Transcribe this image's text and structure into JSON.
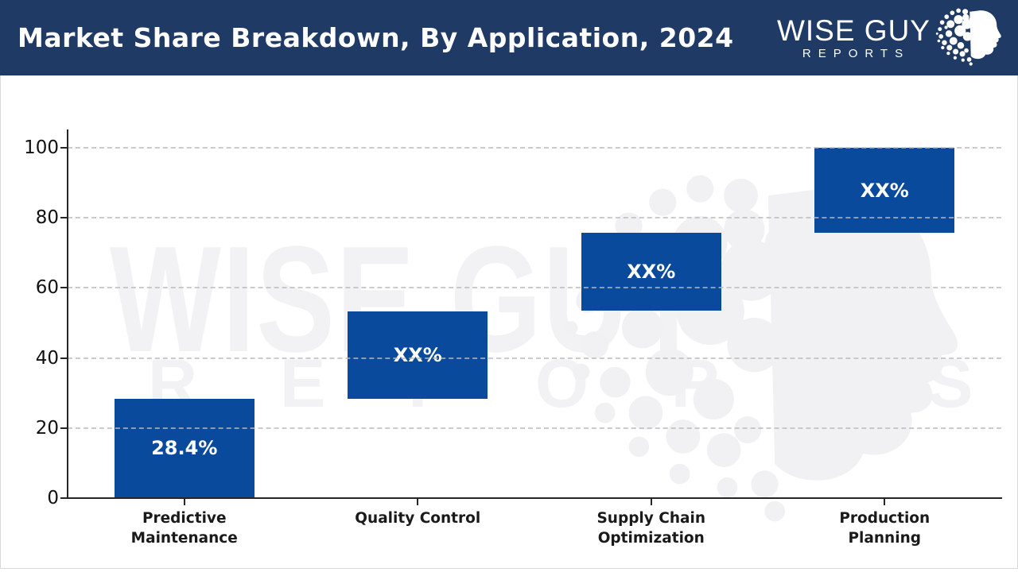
{
  "header": {
    "title": "Market Share Breakdown, By Application, 2024",
    "bg_color": "#203a66",
    "logo": {
      "primary": "WISE GUY",
      "secondary": "REPORTS"
    }
  },
  "watermark": {
    "primary": "WISE GUY",
    "secondary": "R E P O R T S"
  },
  "chart_data": {
    "type": "bar",
    "subtype": "waterfall",
    "title": "Market Share Breakdown, By Application, 2024",
    "categories": [
      "Predictive Maintenance",
      "Quality Control",
      "Supply Chain Optimization",
      "Production Planning"
    ],
    "segments": [
      {
        "category": "Predictive Maintenance",
        "start": 0,
        "end": 28.4,
        "value_label": "28.4%"
      },
      {
        "category": "Quality Control",
        "start": 28.4,
        "end": 53.4,
        "value_label": "XX%"
      },
      {
        "category": "Supply Chain Optimization",
        "start": 53.4,
        "end": 75.7,
        "value_label": "XX%"
      },
      {
        "category": "Production Planning",
        "start": 75.7,
        "end": 100,
        "value_label": "XX%"
      }
    ],
    "ylim": [
      0,
      100
    ],
    "yticks": [
      {
        "v": 0,
        "label": "0"
      },
      {
        "v": 20,
        "label": "20"
      },
      {
        "v": 40,
        "label": "40"
      },
      {
        "v": 60,
        "label": "60"
      },
      {
        "v": 80,
        "label": "80"
      },
      {
        "v": 100,
        "label": "100"
      }
    ],
    "grid": "horizontal-dashed",
    "legend": "none",
    "bar_color": "#0a4a9c",
    "value_label_color": "#ffffff"
  }
}
